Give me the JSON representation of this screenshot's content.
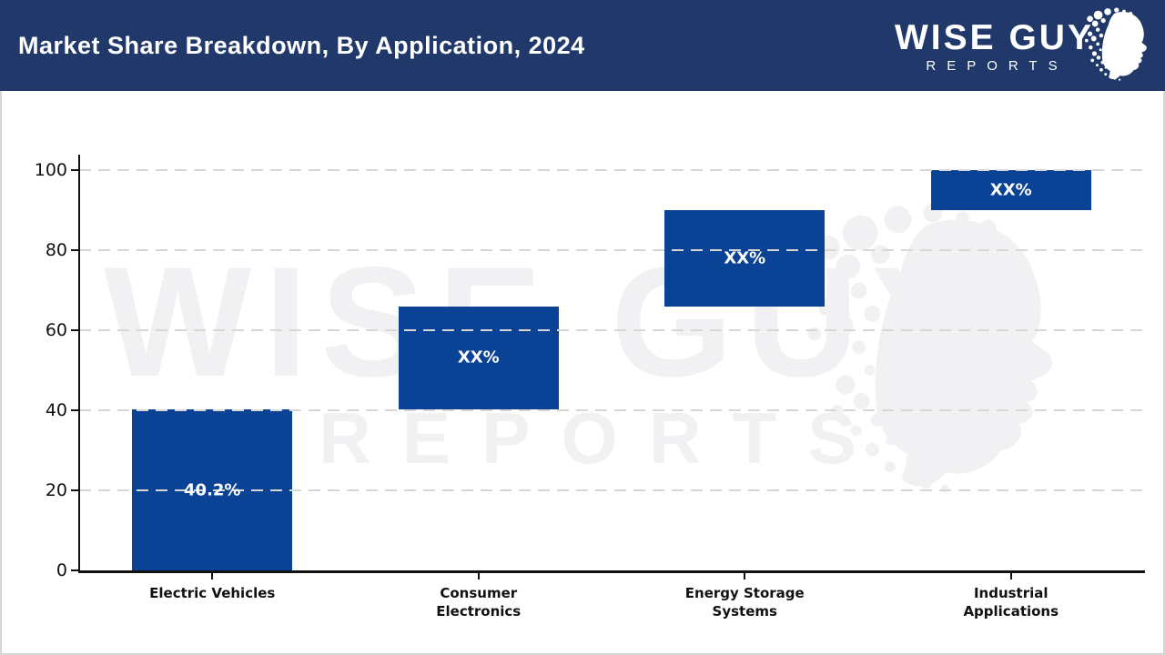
{
  "header": {
    "title": "Market Share Breakdown, By Application, 2024",
    "logo_line1": "WISE GUY",
    "logo_line2": "REPORTS"
  },
  "watermark": {
    "line1": "WISE GUY",
    "line2": "REPORTS"
  },
  "chart_data": {
    "type": "bar",
    "subtype": "waterfall",
    "title": "Market Share Breakdown, By Application, 2024",
    "categories": [
      "Electric Vehicles",
      "Consumer Electronics",
      "Energy Storage Systems",
      "Industrial Applications"
    ],
    "segments": [
      {
        "category": "Electric Vehicles",
        "category_lines": [
          "Electric Vehicles"
        ],
        "start": 0,
        "end": 40.2,
        "bar_label": "40.2%"
      },
      {
        "category": "Consumer Electronics",
        "category_lines": [
          "Consumer",
          "Electronics"
        ],
        "start": 40.2,
        "end": 66,
        "bar_label": "XX%"
      },
      {
        "category": "Energy Storage Systems",
        "category_lines": [
          "Energy Storage",
          "Systems"
        ],
        "start": 66,
        "end": 90,
        "bar_label": "XX%"
      },
      {
        "category": "Industrial Applications",
        "category_lines": [
          "Industrial",
          "Applications"
        ],
        "start": 90,
        "end": 100,
        "bar_label": "XX%"
      }
    ],
    "yticks": [
      0,
      20,
      40,
      60,
      80,
      100
    ],
    "ylim": [
      0,
      104
    ],
    "xlabel": "",
    "ylabel": "",
    "grid": true,
    "legend": false,
    "bar_color": "#0a4296",
    "bar_label_color": "#ffffff",
    "axis_color": "#111111",
    "grid_color": "#d7d7d7",
    "header_color": "#20396a",
    "watermark_color": "#f1f1f4"
  }
}
